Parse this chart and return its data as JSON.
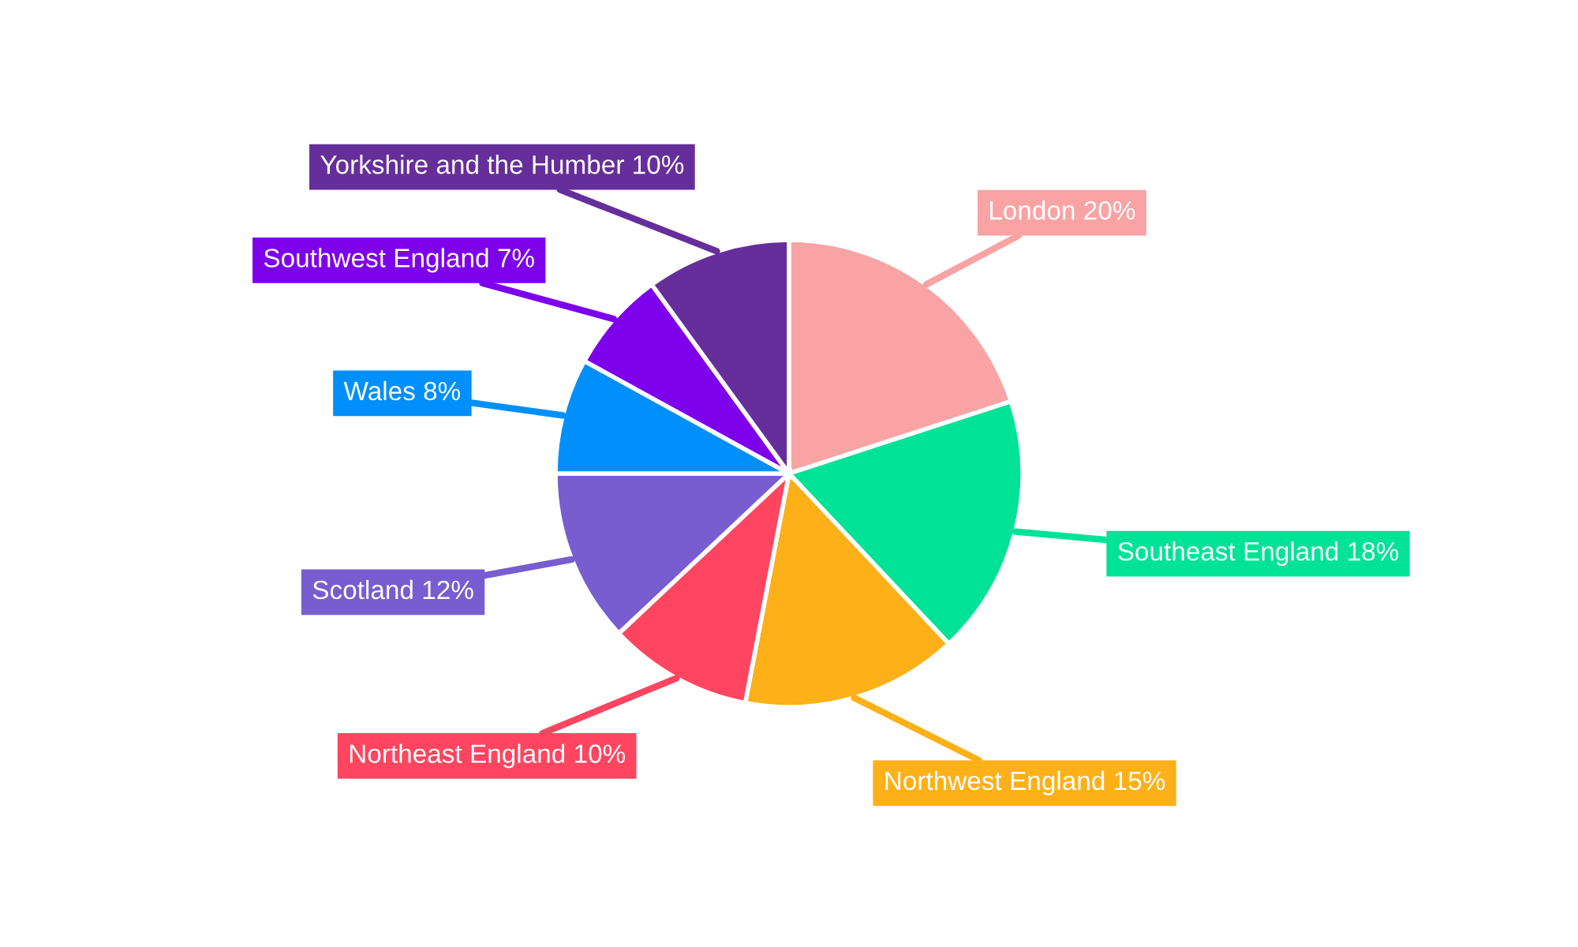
{
  "chart_data": {
    "type": "pie",
    "categories": [
      "London",
      "Southeast England",
      "Northwest England",
      "Northeast England",
      "Scotland",
      "Wales",
      "Southwest England",
      "Yorkshire and the Humber"
    ],
    "values": [
      20,
      18,
      15,
      10,
      12,
      8,
      7,
      10
    ],
    "value_labels": [
      "20%",
      "18%",
      "15%",
      "10%",
      "12%",
      "8%",
      "7%",
      "10%"
    ],
    "colors": [
      "#f9a3a4",
      "#00e396",
      "#feb019",
      "#ff4560",
      "#775dd0",
      "#008ffb",
      "#7d02eb",
      "#662e9b"
    ]
  }
}
